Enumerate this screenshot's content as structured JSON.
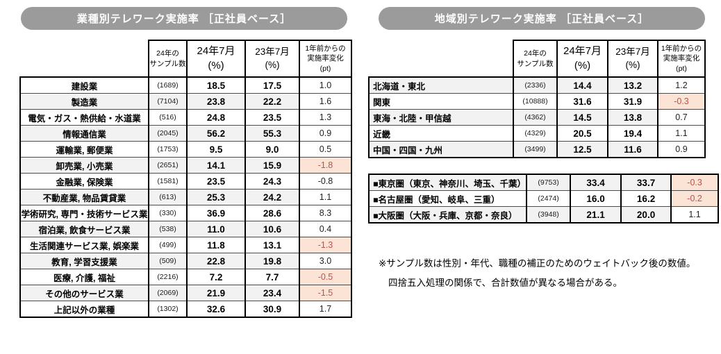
{
  "colors": {
    "banner": "#9b9b9b",
    "stripe": "#f2f2f2",
    "change_header_bg": "#dce6f1",
    "negative_bg": "#fbe3d5",
    "negative_text": "#c0504d"
  },
  "headers": {
    "sample": "24年の\nサンプル数",
    "jul24": "24年7月\n(%)",
    "jul23": "23年7月\n(%)",
    "change": "1年前からの\n実施率変化\n(pt)"
  },
  "left_table": {
    "title": "業種別テレワーク実施率 ［正社員ベース］",
    "rows": [
      {
        "label": "建設業",
        "sample": "(1689)",
        "jul24": "18.5",
        "jul23": "17.5",
        "change": "1.0",
        "highlight": false
      },
      {
        "label": "製造業",
        "sample": "(7104)",
        "jul24": "23.8",
        "jul23": "22.2",
        "change": "1.6",
        "highlight": false
      },
      {
        "label": "電気・ガス・熱供給・水道業",
        "sample": "(516)",
        "jul24": "24.8",
        "jul23": "23.5",
        "change": "1.3",
        "highlight": false
      },
      {
        "label": "情報通信業",
        "sample": "(2045)",
        "jul24": "56.2",
        "jul23": "55.3",
        "change": "0.9",
        "highlight": false
      },
      {
        "label": "運輸業, 郵便業",
        "sample": "(1753)",
        "jul24": "9.5",
        "jul23": "9.0",
        "change": "0.5",
        "highlight": false
      },
      {
        "label": "卸売業, 小売業",
        "sample": "(2651)",
        "jul24": "14.1",
        "jul23": "15.9",
        "change": "-1.8",
        "highlight": true
      },
      {
        "label": "金融業, 保険業",
        "sample": "(1581)",
        "jul24": "23.5",
        "jul23": "24.3",
        "change": "-0.8",
        "highlight": false
      },
      {
        "label": "不動産業, 物品賃貸業",
        "sample": "(613)",
        "jul24": "25.3",
        "jul23": "24.2",
        "change": "1.1",
        "highlight": false
      },
      {
        "label": "学術研究, 専門・技術サービス業",
        "sample": "(330)",
        "jul24": "36.9",
        "jul23": "28.6",
        "change": "8.3",
        "highlight": false
      },
      {
        "label": "宿泊業, 飲食サービス業",
        "sample": "(538)",
        "jul24": "11.0",
        "jul23": "10.6",
        "change": "0.4",
        "highlight": false
      },
      {
        "label": "生活関連サービス業, 娯楽業",
        "sample": "(499)",
        "jul24": "11.8",
        "jul23": "13.1",
        "change": "-1.3",
        "highlight": true
      },
      {
        "label": "教育, 学習支援業",
        "sample": "(509)",
        "jul24": "22.8",
        "jul23": "19.8",
        "change": "3.0",
        "highlight": false
      },
      {
        "label": "医療, 介護, 福祉",
        "sample": "(2216)",
        "jul24": "7.2",
        "jul23": "7.7",
        "change": "-0.5",
        "highlight": true
      },
      {
        "label": "その他のサービス業",
        "sample": "(2069)",
        "jul24": "21.9",
        "jul23": "23.4",
        "change": "-1.5",
        "highlight": true
      },
      {
        "label": "上記以外の業種",
        "sample": "(1302)",
        "jul24": "32.6",
        "jul23": "30.9",
        "change": "1.7",
        "highlight": false
      }
    ]
  },
  "right_table": {
    "title": "地域別テレワーク実施率 ［正社員ベース］",
    "region_rows": [
      {
        "label": "北海道・東北",
        "sample": "(2336)",
        "jul24": "14.4",
        "jul23": "13.2",
        "change": "1.2",
        "highlight": false
      },
      {
        "label": "関東",
        "sample": "(10888)",
        "jul24": "31.6",
        "jul23": "31.9",
        "change": "-0.3",
        "highlight": true
      },
      {
        "label": "東海・北陸・甲信越",
        "sample": "(4362)",
        "jul24": "14.5",
        "jul23": "13.8",
        "change": "0.7",
        "highlight": false
      },
      {
        "label": "近畿",
        "sample": "(4329)",
        "jul24": "20.5",
        "jul23": "19.4",
        "change": "1.1",
        "highlight": false
      },
      {
        "label": "中国・四国・九州",
        "sample": "(3499)",
        "jul24": "12.5",
        "jul23": "11.6",
        "change": "0.9",
        "highlight": false
      }
    ],
    "metro_rows": [
      {
        "label": "■東京圏（東京、神奈川、埼玉、千葉）",
        "sample": "(9753)",
        "jul24": "33.4",
        "jul23": "33.7",
        "change": "-0.3",
        "highlight": true
      },
      {
        "label": "■名古屋圏（愛知、岐阜、三重）",
        "sample": "(2474)",
        "jul24": "16.0",
        "jul23": "16.2",
        "change": "-0.2",
        "highlight": true
      },
      {
        "label": "■大阪圏（大阪・兵庫、京都・奈良）",
        "sample": "(3948)",
        "jul24": "21.1",
        "jul23": "20.0",
        "change": "1.1",
        "highlight": false
      }
    ]
  },
  "footnote": {
    "line1": "※サンプル数は性別・年代、職種の補正のためのウェイトバック後の数値。",
    "line2": "四捨五入処理の関係で、合計数値が異なる場合がある。"
  }
}
